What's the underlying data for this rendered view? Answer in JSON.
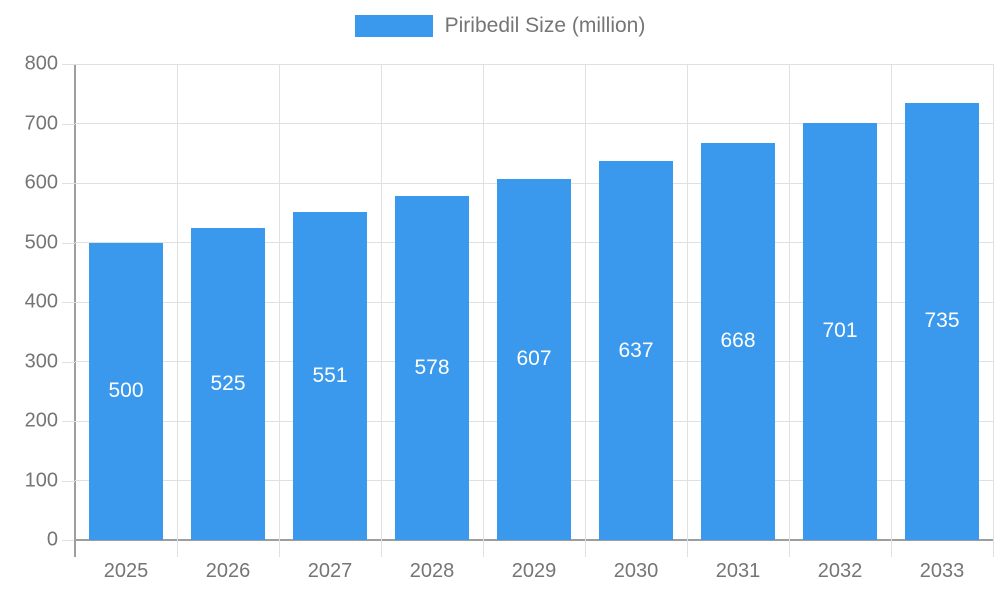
{
  "legend": {
    "label": "Piribedil Size (million)",
    "swatch_color": "#3A99EC"
  },
  "chart_data": {
    "type": "bar",
    "title": "",
    "xlabel": "",
    "ylabel": "",
    "categories": [
      "2025",
      "2026",
      "2027",
      "2028",
      "2029",
      "2030",
      "2031",
      "2032",
      "2033"
    ],
    "series": [
      {
        "name": "Piribedil Size (million)",
        "values": [
          500,
          525,
          551,
          578,
          607,
          637,
          668,
          701,
          735
        ]
      }
    ],
    "ylim": [
      0,
      800
    ],
    "ytick_step": 100,
    "grid": true,
    "legend_position": "top",
    "bar_color": "#3A99EC",
    "value_labels": true,
    "value_label_color": "#FFFFFF"
  },
  "colors": {
    "bar": "#3A99EC",
    "axis_line": "#9E9E9E",
    "gridline": "#E0E0E0",
    "tick_text": "#757575",
    "background": "#FFFFFF"
  }
}
